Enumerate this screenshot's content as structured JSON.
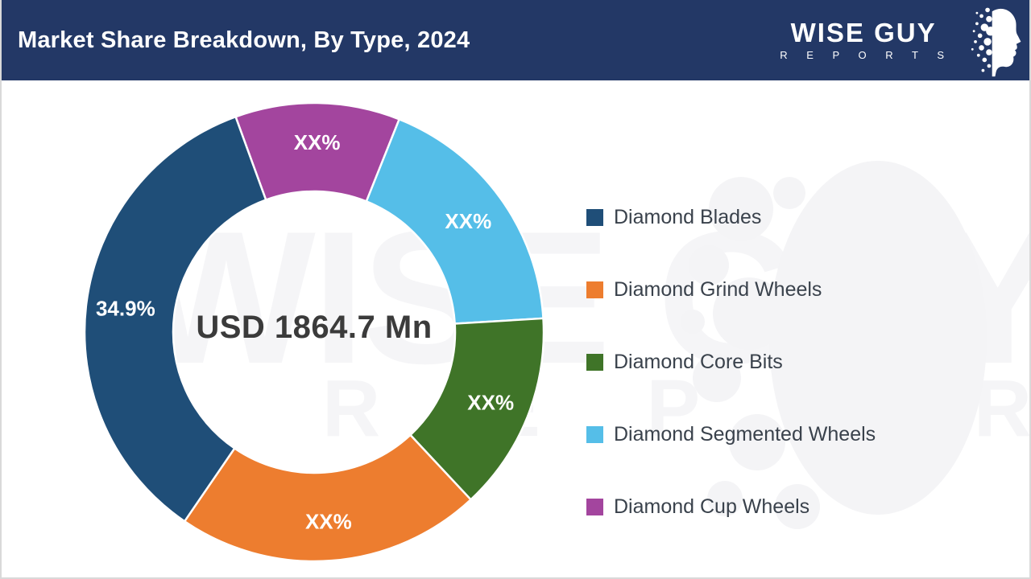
{
  "header": {
    "title": "Market Share Breakdown, By Type, 2024",
    "bg_color": "#233866",
    "logo": {
      "line1": "WISE GUY",
      "line2": "R E P O R T S",
      "icon": "wiseguy-face-icon"
    }
  },
  "watermark": {
    "line1": "WISE GUY",
    "line2": "R E P O R T S"
  },
  "chart_data": {
    "type": "pie",
    "variant": "donut",
    "title": "Market Share Breakdown, By Type, 2024",
    "center_label": "USD 1864.7 Mn",
    "legend_position": "right",
    "start_clock_angle_deg": 340,
    "draw_direction": "clockwise-reversed-legend-order",
    "segments": [
      {
        "label": "Diamond Blades",
        "value_pct": 34.9,
        "display_label": "34.9%",
        "color": "#1F4E78"
      },
      {
        "label": "Diamond Grind Wheels",
        "value_pct": 21.5,
        "display_label": "XX%",
        "color": "#ED7D2F"
      },
      {
        "label": "Diamond Core Bits",
        "value_pct": 14.0,
        "display_label": "XX%",
        "color": "#3F7428"
      },
      {
        "label": "Diamond Segmented Wheels",
        "value_pct": 18.0,
        "display_label": "XX%",
        "color": "#55BEE8"
      },
      {
        "label": "Diamond Cup Wheels",
        "value_pct": 11.6,
        "display_label": "XX%",
        "color": "#A3459E"
      }
    ]
  },
  "colors": {
    "header_navy": "#233866",
    "center_text": "#3b3b3b",
    "legend_text": "#3a424c",
    "slice_label": "#ffffff",
    "watermark": "#f5f5f7",
    "border": "#d9d9d9"
  }
}
